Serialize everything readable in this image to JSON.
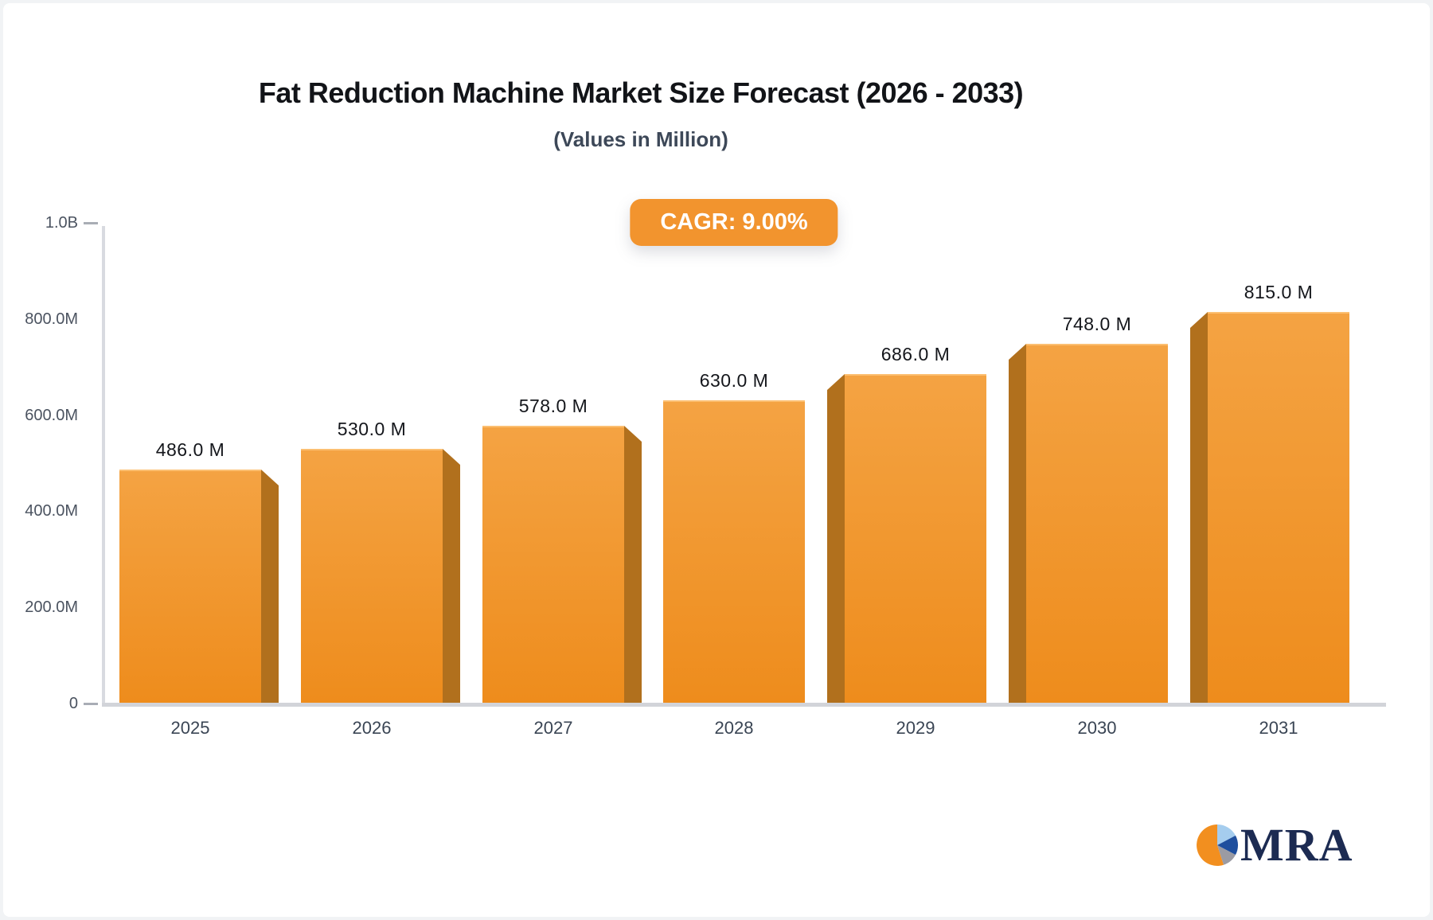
{
  "chart_data": {
    "type": "bar",
    "title": "Fat Reduction Machine Market Size Forecast (2026 - 2033)",
    "subtitle": "(Values in Million)",
    "badge_label": "CAGR: 9.00%",
    "categories": [
      "2025",
      "2026",
      "2027",
      "2028",
      "2029",
      "2030",
      "2031"
    ],
    "values": [
      486,
      530,
      578,
      630,
      686,
      748,
      815
    ],
    "value_labels": [
      "486.0 M",
      "530.0 M",
      "578.0 M",
      "630.0 M",
      "686.0 M",
      "748.0 M",
      "815.0 M"
    ],
    "xlabel": "",
    "ylabel": "",
    "ylim": [
      0,
      1000
    ],
    "grid": false,
    "legend": "none",
    "y_ticks": [
      {
        "label": "1.0B",
        "value": 1000,
        "dash": true
      },
      {
        "label": "800.0M",
        "value": 800,
        "dash": false
      },
      {
        "label": "600.0M",
        "value": 600,
        "dash": false
      },
      {
        "label": "400.0M",
        "value": 400,
        "dash": false
      },
      {
        "label": "200.0M",
        "value": 200,
        "dash": false
      },
      {
        "label": "0",
        "value": 0,
        "dash": true
      }
    ],
    "colors": {
      "bar_face_top": "#f4a343",
      "bar_face_bottom": "#ee8c1c",
      "bar_side": "#b1701d",
      "badge_bg": "#f2942e",
      "badge_text": "#ffffff",
      "axis_line": "#d8dae0",
      "baseline": "#d2d4d9"
    }
  },
  "logo": {
    "text": "MRA",
    "icon": "pie-chart-icon",
    "colors": {
      "orange": "#f28f1f",
      "light_blue": "#a5cdee",
      "dark_blue": "#1f4f9e",
      "gray": "#9b9ba3",
      "text": "#1c2b52"
    }
  }
}
